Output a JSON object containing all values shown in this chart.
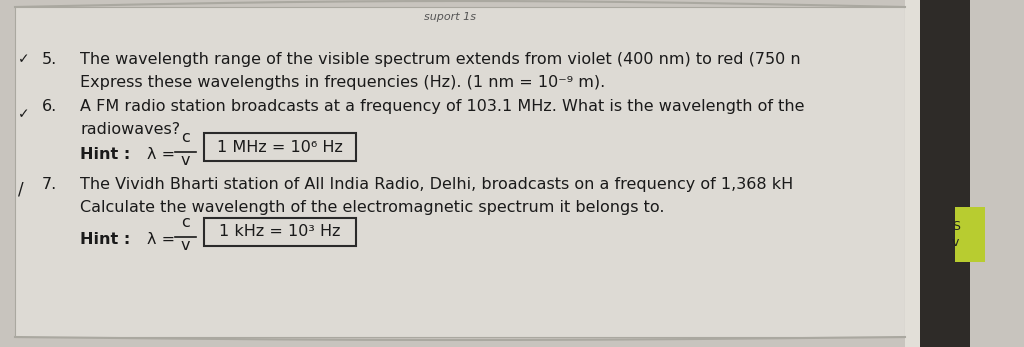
{
  "bg_outer": "#c8c4be",
  "bg_page": "#dddad4",
  "text_color": "#1a1a1a",
  "box_edge_color": "#2a2a2a",
  "spine_color": "#3a3530",
  "green_tab_color": "#b8cc30",
  "right_side_bg": "#e8e5df",
  "title_text": "suport 1s",
  "q5_num": "5.",
  "q5_line1": "The wavelength range of the visible spectrum extends from violet (400 nm) to red (750 n",
  "q5_line2": "Express these wavelengths in frequencies (Hz). (1 nm = 10⁻⁹ m).",
  "q6_num": "6.",
  "q6_line1": "A FM radio station broadcasts at a frequency of 103.1 MHz. What is the wavelength of the",
  "q6_line2": "radiowaves?",
  "hint6_box": "1 MHz = 10⁶ Hz",
  "q7_num": "7.",
  "q7_line1": "The Vividh Bharti station of All India Radio, Delhi, broadcasts on a frequency of 1,368 kH",
  "q7_line2": "Calculate the wavelength of the electromagnetic spectrum it belongs to.",
  "hint7_box": "1 kHz = 10³ Hz",
  "font_size_body": 11.5,
  "font_size_hint": 11.5,
  "font_size_num": 11.5,
  "font_size_small": 8
}
